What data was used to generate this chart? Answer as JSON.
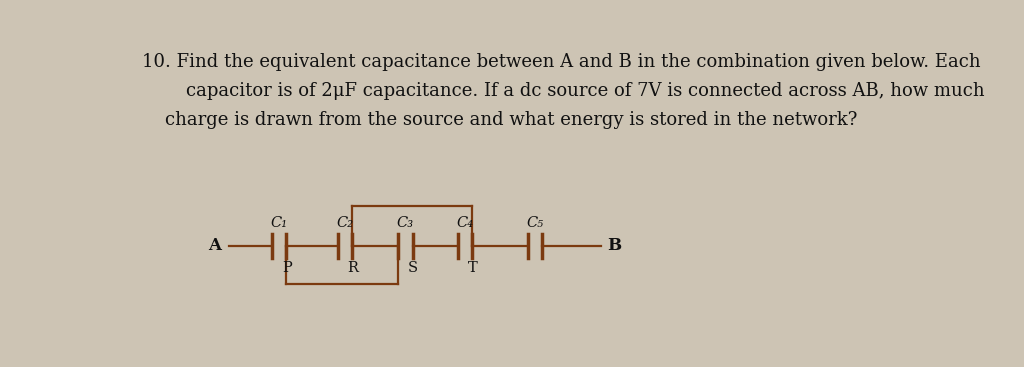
{
  "title_line1": "10. Find the equivalent capacitance between A and B in the combination given below. Each",
  "title_line2": "    capacitor is of 2μF capacitance. If a dc source of 7V is connected across AB, how much",
  "title_line3": "    charge is drawn from the source and what energy is stored in the network?",
  "bg_color": "#cdc4b4",
  "text_color": "#111111",
  "circuit_color": "#7B3A10",
  "label_A": "A",
  "label_B": "B",
  "label_P": "P",
  "label_R": "R",
  "label_S": "S",
  "label_T": "T",
  "cap_labels": [
    "C₁",
    "C₂",
    "C₃",
    "C₄",
    "C₅"
  ],
  "font_size_text": 13.0,
  "font_size_circuit": 10.5,
  "font_size_node": 10.5
}
